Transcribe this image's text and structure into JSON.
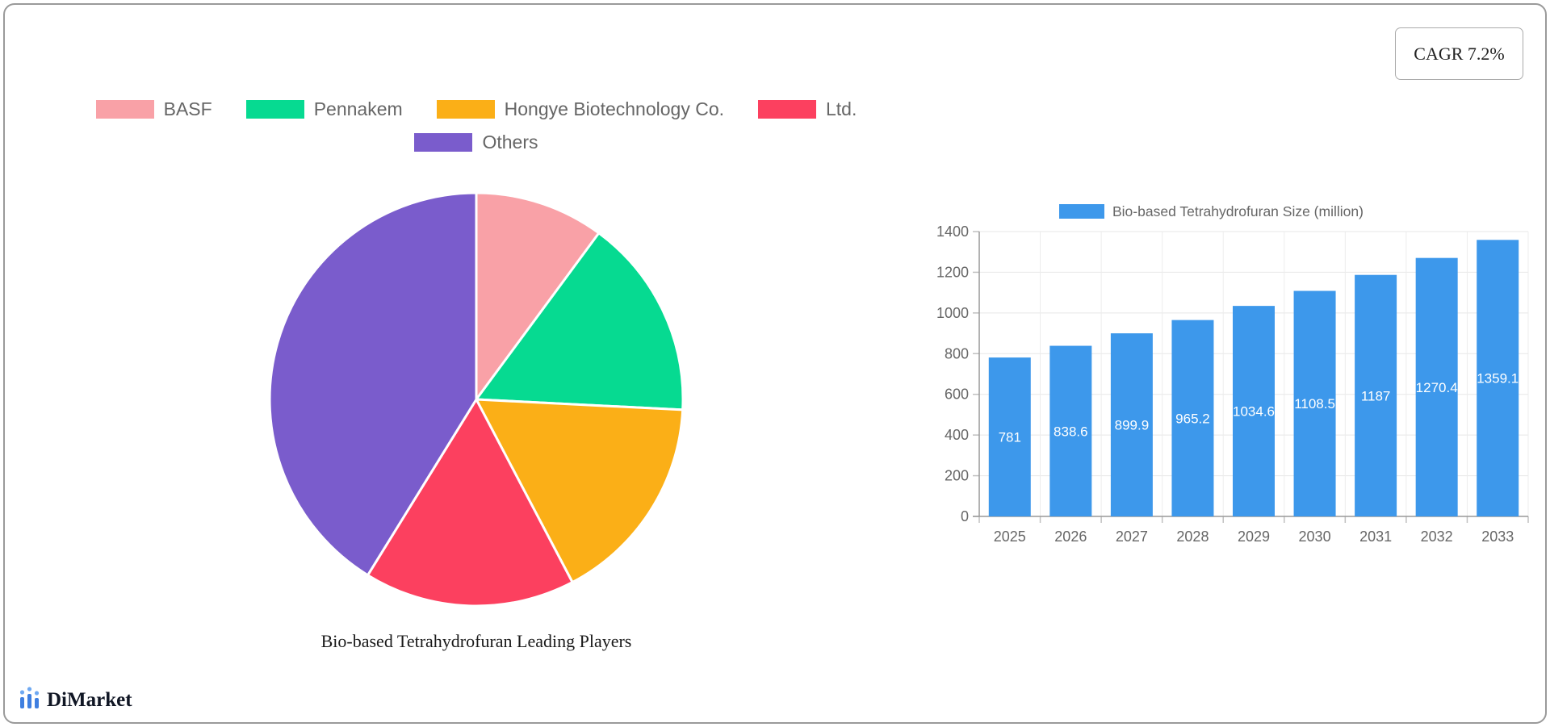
{
  "badge": {
    "label": "CAGR 7.2%"
  },
  "logo": {
    "text": "DiMarket",
    "icon_color": "#3F7FE0",
    "icon_dot_color": "#6FA9F2"
  },
  "colors": {
    "bar_blue": "#3D98EB",
    "axis_text": "#666666",
    "grid_line": "#e7e7e7",
    "axis_line": "#999999",
    "tick_line": "#c0c0c0"
  },
  "chart_data": [
    {
      "type": "pie",
      "title": "Bio-based Tetrahydrofuran Leading Players",
      "labels": [
        "BASF",
        "Pennakem",
        "Hongye Biotechnology Co.",
        "Ltd.",
        "Others"
      ],
      "values": [
        10.1,
        15.7,
        16.5,
        16.5,
        41.2
      ],
      "values_note": "percent, estimated from slice angles",
      "colors": [
        "#F9A1A7",
        "#06DA91",
        "#FBAF17",
        "#FC405F",
        "#7A5CCC"
      ],
      "legend_position": "top",
      "legend_rows": [
        4,
        1
      ],
      "start_angle_deg": 0,
      "direction": "clockwise"
    },
    {
      "type": "bar",
      "legend_label": "Bio-based Tetrahydrofuran Size (million)",
      "categories": [
        "2025",
        "2026",
        "2027",
        "2028",
        "2029",
        "2030",
        "2031",
        "2032",
        "2033"
      ],
      "values": [
        781,
        838.6,
        899.9,
        965.2,
        1034.6,
        1108.5,
        1187,
        1270.4,
        1359.1
      ],
      "ylim": [
        0,
        1400
      ],
      "yticks": [
        0,
        200,
        400,
        600,
        800,
        1000,
        1200,
        1400
      ],
      "bar_color": "#3D98EB",
      "value_label_color": "#ffffff",
      "grid": true,
      "legend_position": "top"
    }
  ]
}
